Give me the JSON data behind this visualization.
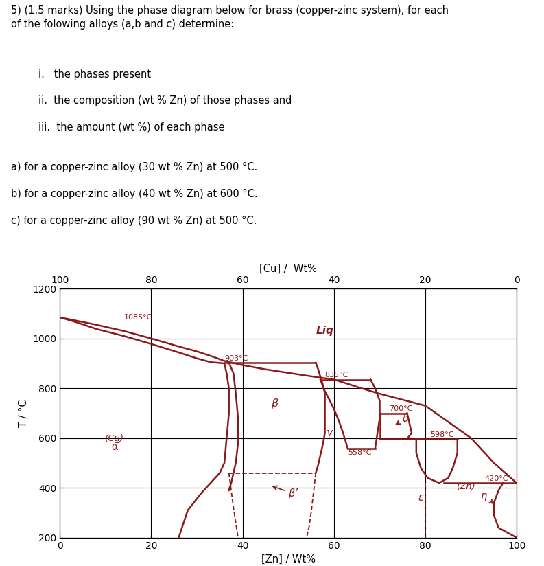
{
  "title_text": "5) (1.5 marks) Using the phase diagram below for brass (copper-zinc system), for each\nof the folowing alloys (a,b and c) determine:",
  "bullet_i": "i.   the phases present",
  "bullet_ii": "ii.  the composition (wt % Zn) of those phases and",
  "bullet_iii": "iii.  the amount (wt %) of each phase",
  "line_a": "a) for a copper-zinc alloy (30 wt % Zn) at 500 °C.",
  "line_b": "b) for a copper-zinc alloy (40 wt % Zn) at 600 °C.",
  "line_c": "c) for a copper-zinc alloy (90 wt % Zn) at 500 °C.",
  "top_axis_label": "[Cu] /  Wt%",
  "bottom_axis_label": "[Zn] / Wt%",
  "ylabel": "T / °C",
  "ylim": [
    200,
    1200
  ],
  "xlim": [
    0,
    100
  ],
  "line_color": "#8B1A1A",
  "background_color": "#ffffff"
}
